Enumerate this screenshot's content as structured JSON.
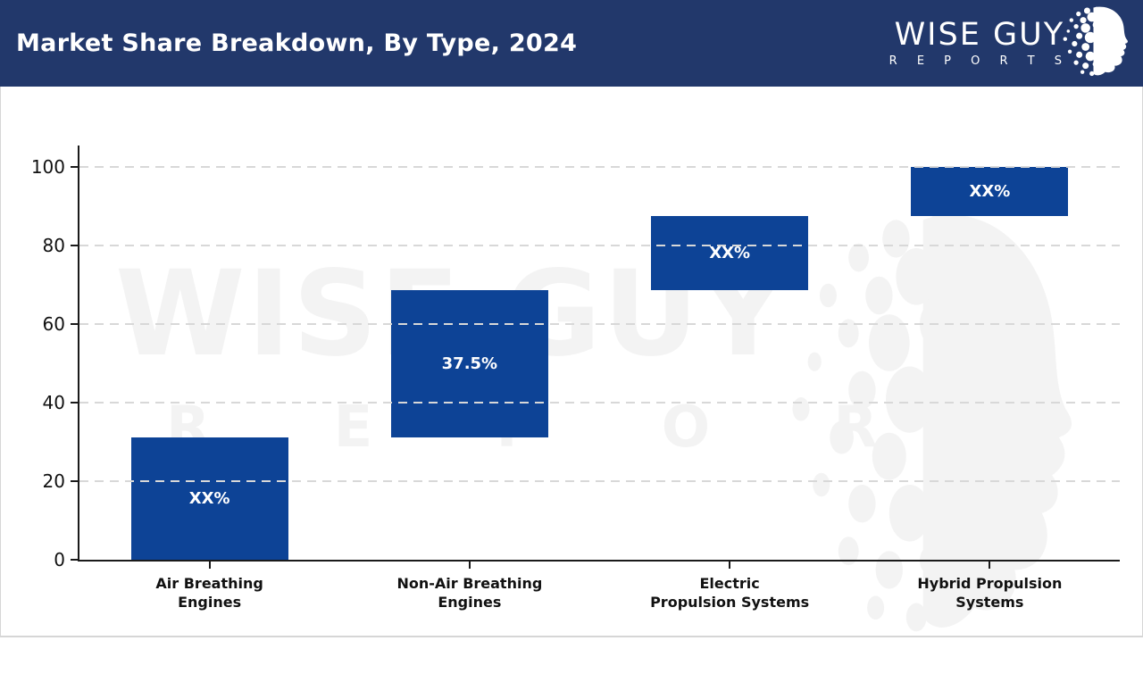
{
  "header": {
    "title": "Market Share Breakdown, By Type, 2024",
    "logo": {
      "name": "WISE GUY",
      "sub": "R E P O R T S"
    }
  },
  "watermark": {
    "line1": "WISE GUY",
    "line2": "R E P O R T S"
  },
  "colors": {
    "header_bg": "#22386b",
    "bar": "#0d4396",
    "axis": "#1a1a1a",
    "gridline": "#d8d8d8",
    "watermark": "#f3f3f3",
    "bar_label": "#ffffff",
    "card_border": "#d6d6d6"
  },
  "chart_data": {
    "type": "bar",
    "subtype": "waterfall",
    "title": "Market Share Breakdown, By Type, 2024",
    "categories": [
      [
        "Air Breathing",
        "Engines"
      ],
      [
        "Non-Air Breathing",
        "Engines"
      ],
      [
        "Electric",
        "Propulsion Systems"
      ],
      [
        "Hybrid Propulsion",
        "Systems"
      ]
    ],
    "series": [
      {
        "name": "Market Share",
        "segments": [
          {
            "category": "Air Breathing Engines",
            "start": 0,
            "end": 31.25,
            "label": "XX%"
          },
          {
            "category": "Non-Air Breathing Engines",
            "start": 31.25,
            "end": 68.75,
            "label": "37.5%"
          },
          {
            "category": "Electric Propulsion Systems",
            "start": 68.75,
            "end": 87.5,
            "label": "XX%"
          },
          {
            "category": "Hybrid Propulsion Systems",
            "start": 87.5,
            "end": 100,
            "label": "XX%"
          }
        ]
      }
    ],
    "ylim": [
      0,
      100
    ],
    "yticks": [
      0,
      20,
      40,
      60,
      80,
      100
    ],
    "xlabel": "",
    "ylabel": "",
    "grid": "horizontal-dashed",
    "legend": "none"
  }
}
